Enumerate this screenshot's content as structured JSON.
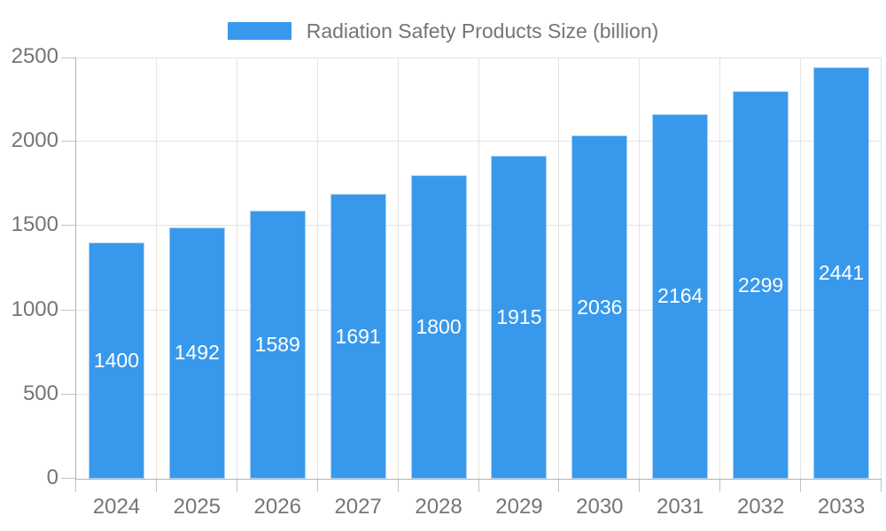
{
  "legend": {
    "label": "Radiation Safety Products Size (billion)"
  },
  "chart_data": {
    "type": "bar",
    "title": "Radiation Safety Products Size (billion)",
    "categories": [
      "2024",
      "2025",
      "2026",
      "2027",
      "2028",
      "2029",
      "2030",
      "2031",
      "2032",
      "2033"
    ],
    "values": [
      1400,
      1492,
      1589,
      1691,
      1800,
      1915,
      2036,
      2164,
      2299,
      2441
    ],
    "xlabel": "",
    "ylabel": "",
    "ylim": [
      0,
      2500
    ],
    "yticks": [
      0,
      500,
      1000,
      1500,
      2000,
      2500
    ],
    "ytick_labels": [
      "0",
      "500",
      "1000",
      "1500",
      "2000",
      "2500"
    ],
    "grid": true,
    "legend_position": "top-center",
    "value_labels": "inside-center",
    "colors": {
      "bar": "#3899ec",
      "bar_border": "#a9d2f4",
      "grid": "#e3e3e3",
      "axis": "#b3b3b3",
      "tick": "#c2c2c2",
      "text": "#757575",
      "value_label": "#ffffff",
      "background": "#ffffff"
    }
  }
}
